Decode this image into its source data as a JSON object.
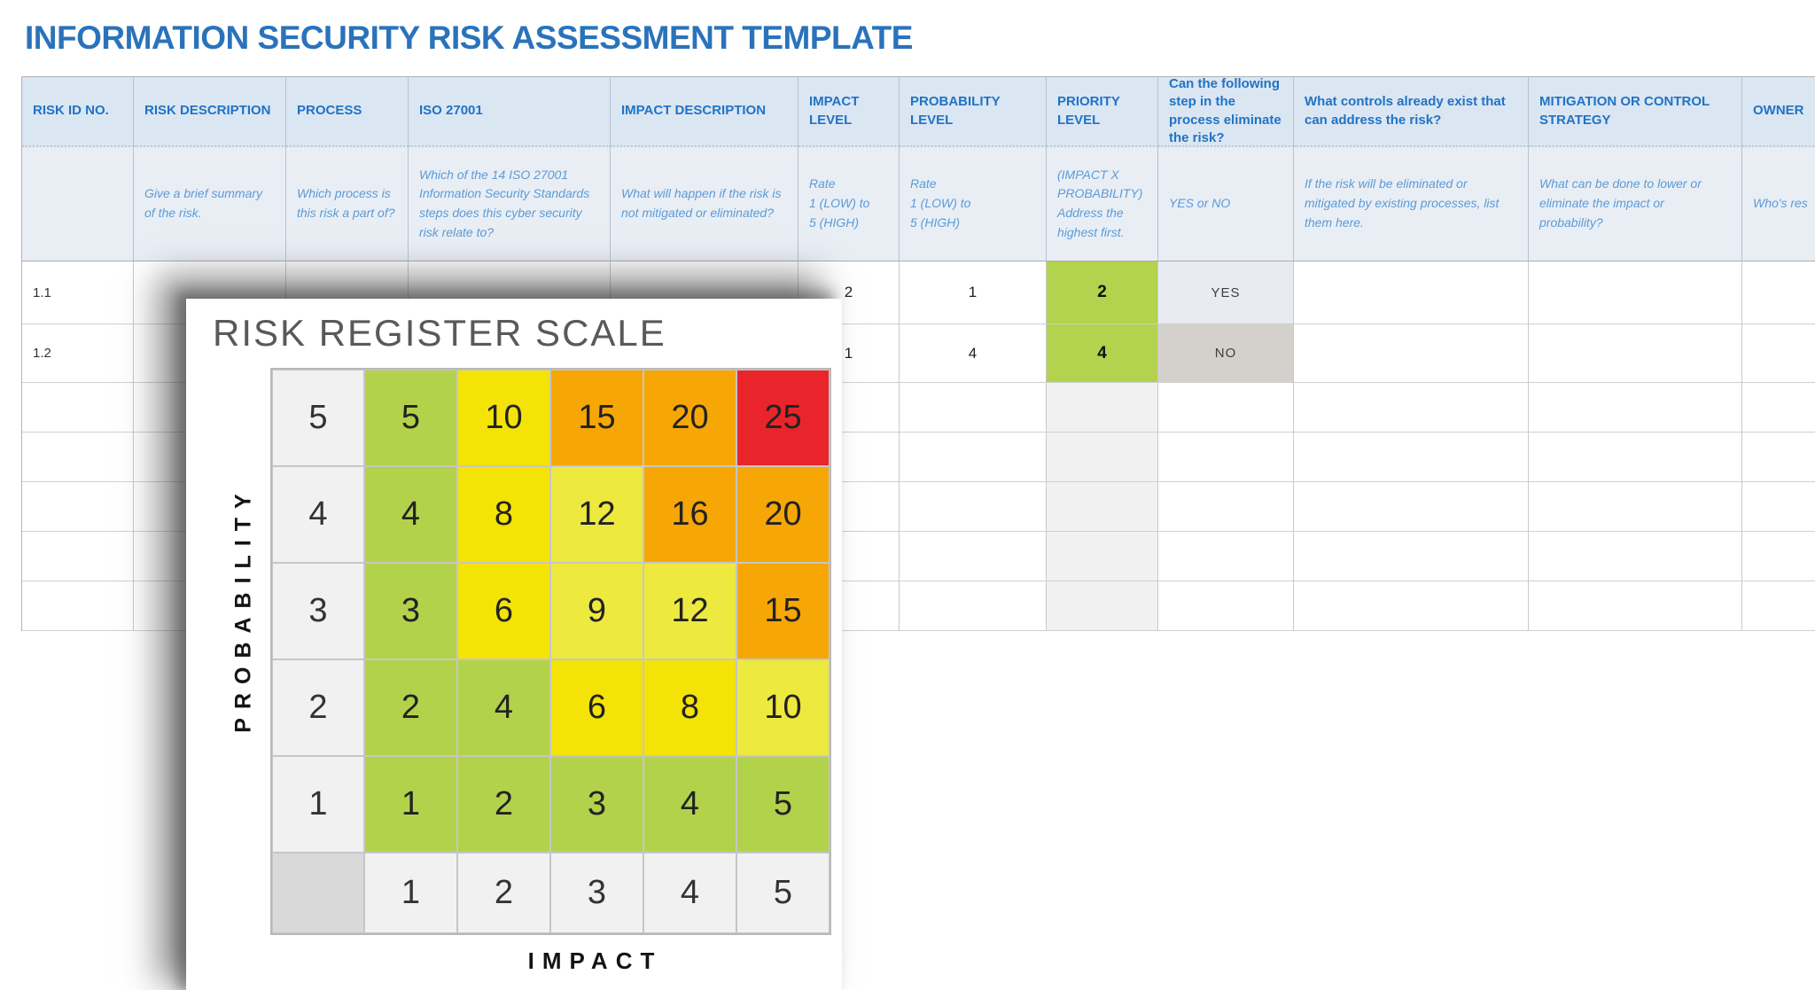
{
  "title": "INFORMATION SECURITY RISK ASSESSMENT TEMPLATE",
  "colors": {
    "title_blue": "#2A73BB",
    "header_text_blue": "#2173C4",
    "header_bg": "#dbe6f3",
    "subheader_bg": "#e9eef5",
    "subheader_text": "#5B9BD5",
    "priority_filled_bg": "#B3D24D",
    "priority_empty_bg": "#F1F1F1",
    "yes_cell_bg": "#E9EBF2",
    "no_cell_bg": "#D4D1CD"
  },
  "table": {
    "columns": [
      {
        "id": "risk_id",
        "label": "RISK ID NO.",
        "description": ""
      },
      {
        "id": "risk_description",
        "label": "RISK DESCRIPTION",
        "description": "Give a brief summary of the risk."
      },
      {
        "id": "process",
        "label": "PROCESS",
        "description": "Which process is this risk a part of?"
      },
      {
        "id": "iso_27001",
        "label": "ISO 27001",
        "description": "Which of the 14 ISO 27001 Information Security Standards steps does this cyber security risk relate to?"
      },
      {
        "id": "impact_description",
        "label": "IMPACT DESCRIPTION",
        "description": "What will happen if the risk is not mitigated or eliminated?"
      },
      {
        "id": "impact_level",
        "label": "IMPACT LEVEL",
        "description": "Rate\n1 (LOW) to\n5 (HIGH)"
      },
      {
        "id": "probability_level",
        "label": "PROBABILITY LEVEL",
        "description": "Rate\n1 (LOW) to\n5 (HIGH)"
      },
      {
        "id": "priority_level",
        "label": "PRIORITY LEVEL",
        "description": "(IMPACT X\nPROBABILITY)\nAddress the\nhighest first."
      },
      {
        "id": "can_step_eliminate",
        "label": "Can the following step in the process eliminate the risk?",
        "description": "YES or NO"
      },
      {
        "id": "existing_controls",
        "label": "What controls already exist that can address the risk?",
        "description": "If the risk will be eliminated or mitigated by existing processes, list them here."
      },
      {
        "id": "mitigation_strategy",
        "label": "MITIGATION OR CONTROL STRATEGY",
        "description": "What can be done to lower or eliminate the impact or probability?"
      },
      {
        "id": "owner",
        "label": "OWNER",
        "description": "Who's res"
      }
    ],
    "rows": [
      {
        "risk_id": "1.1",
        "impact_level": "2",
        "probability_level": "1",
        "priority_level": "2",
        "can_step_eliminate": "YES"
      },
      {
        "risk_id": "1.2",
        "impact_level": "1",
        "probability_level": "4",
        "priority_level": "4",
        "can_step_eliminate": "NO"
      },
      {},
      {},
      {},
      {},
      {}
    ]
  },
  "overlay": {
    "title": "RISK REGISTER SCALE",
    "chart_data": {
      "type": "heatmap",
      "title": "RISK REGISTER SCALE",
      "x_axis_label": "IMPACT",
      "y_axis_label": "PROBABILITY",
      "x_ticks": [
        "1",
        "2",
        "3",
        "4",
        "5"
      ],
      "y_ticks": [
        "5",
        "4",
        "3",
        "2",
        "1"
      ],
      "cell_values": [
        [
          "5",
          "10",
          "15",
          "20",
          "25"
        ],
        [
          "4",
          "8",
          "12",
          "16",
          "20"
        ],
        [
          "3",
          "6",
          "9",
          "12",
          "15"
        ],
        [
          "2",
          "4",
          "6",
          "8",
          "10"
        ],
        [
          "1",
          "2",
          "3",
          "4",
          "5"
        ]
      ],
      "cell_colors": [
        [
          "green",
          "yellow",
          "orange",
          "orange",
          "red"
        ],
        [
          "green",
          "yellow",
          "yellow_light",
          "orange",
          "orange"
        ],
        [
          "green",
          "yellow",
          "yellow_light",
          "yellow_light",
          "orange"
        ],
        [
          "green",
          "green",
          "yellow",
          "yellow",
          "yellow_light"
        ],
        [
          "green",
          "green",
          "green",
          "green",
          "green"
        ]
      ],
      "color_key": {
        "green": "#B3D24B",
        "yellow": "#F4E306",
        "yellow_light": "#EEE93E",
        "orange": "#F6A705",
        "red": "#E9252B"
      }
    }
  }
}
